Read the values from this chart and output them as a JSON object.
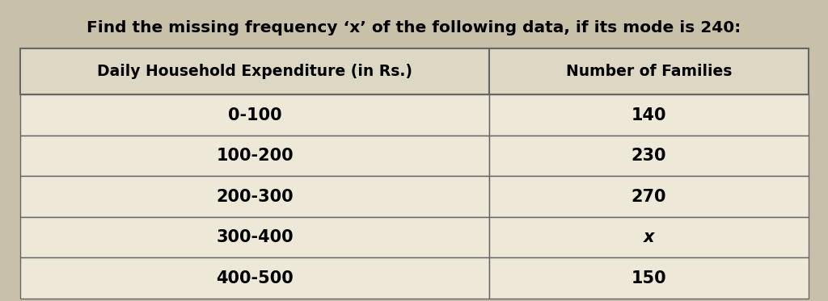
{
  "title": "Find the missing frequency ‘x’ of the following data, if its mode is 240:",
  "col1_header": "Daily Household Expenditure (in Rs.)",
  "col2_header": "Number of Families",
  "rows": [
    [
      "0-100",
      "140"
    ],
    [
      "100-200",
      "230"
    ],
    [
      "200-300",
      "270"
    ],
    [
      "300-400",
      "x"
    ],
    [
      "400-500",
      "150"
    ]
  ],
  "header_bg": "#ddd8c4",
  "row_bg": "#ede8d8",
  "border_color": "#666666",
  "title_color": "#000000",
  "text_color": "#000000",
  "page_bg": "#c8c0a8",
  "title_fontsize": 14.5,
  "header_fontsize": 13.5,
  "cell_fontsize": 15
}
